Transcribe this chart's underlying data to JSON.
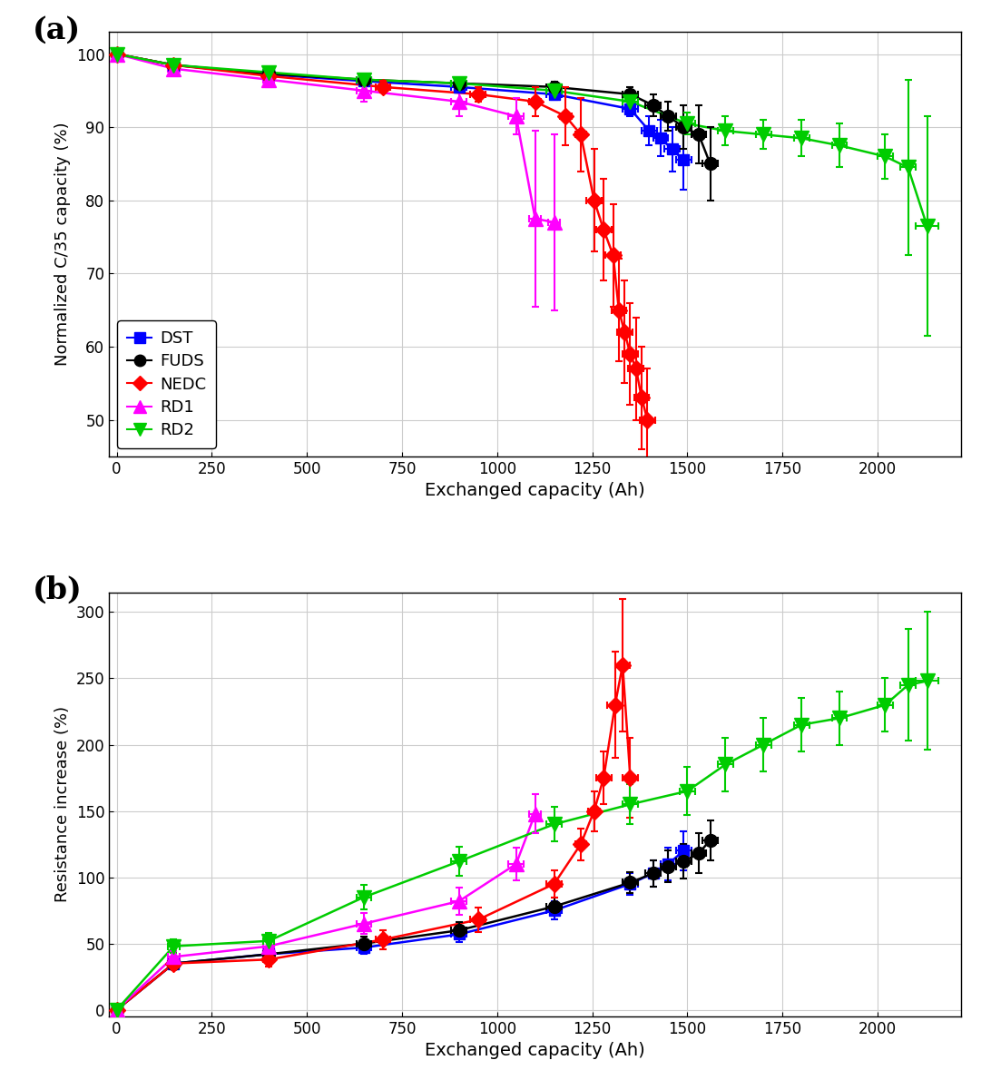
{
  "panel_a": {
    "title": "(a)",
    "ylabel": "Normalized C/35 capacity (%)",
    "xlabel": "Exchanged capacity (Ah)",
    "ylim": [
      45,
      103
    ],
    "xlim": [
      -20,
      2220
    ],
    "yticks": [
      50,
      60,
      70,
      80,
      90,
      100
    ],
    "xticks": [
      0,
      250,
      500,
      750,
      1000,
      1250,
      1500,
      1750,
      2000
    ],
    "series": {
      "DST": {
        "color": "#0000FF",
        "marker": "s",
        "x": [
          0,
          150,
          400,
          650,
          900,
          1150,
          1350,
          1400,
          1430,
          1460,
          1490
        ],
        "y": [
          100,
          98.5,
          97.2,
          96.3,
          95.5,
          94.5,
          92.5,
          89.5,
          88.5,
          87.0,
          85.5
        ],
        "xerr": [
          0,
          15,
          15,
          20,
          20,
          20,
          20,
          20,
          20,
          20,
          20
        ],
        "yerr": [
          0,
          0.3,
          0.5,
          0.5,
          0.7,
          0.8,
          1.0,
          2.0,
          2.5,
          3.0,
          4.0
        ]
      },
      "FUDS": {
        "color": "#000000",
        "marker": "o",
        "x": [
          0,
          150,
          400,
          650,
          900,
          1150,
          1350,
          1410,
          1450,
          1490,
          1530,
          1560
        ],
        "y": [
          100,
          98.5,
          97.3,
          96.5,
          96.0,
          95.5,
          94.5,
          93.0,
          91.5,
          90.0,
          89.0,
          85.0
        ],
        "xerr": [
          0,
          15,
          15,
          20,
          20,
          20,
          20,
          20,
          20,
          20,
          20,
          20
        ],
        "yerr": [
          0,
          0.3,
          0.5,
          0.5,
          0.5,
          0.7,
          1.0,
          1.5,
          2.0,
          3.0,
          4.0,
          5.0
        ]
      },
      "NEDC": {
        "color": "#FF0000",
        "marker": "D",
        "x": [
          0,
          150,
          400,
          700,
          950,
          1100,
          1180,
          1220,
          1255,
          1280,
          1305,
          1320,
          1335,
          1350,
          1365,
          1380,
          1395
        ],
        "y": [
          100,
          98.5,
          97.0,
          95.5,
          94.5,
          93.5,
          91.5,
          89.0,
          80.0,
          76.0,
          72.5,
          65.0,
          62.0,
          59.0,
          57.0,
          53.0,
          50.0
        ],
        "xerr": [
          0,
          15,
          15,
          20,
          20,
          15,
          15,
          15,
          20,
          20,
          20,
          20,
          20,
          20,
          20,
          20,
          20
        ],
        "yerr": [
          0,
          0.3,
          0.5,
          0.8,
          1.0,
          2.0,
          4.0,
          5.0,
          7.0,
          7.0,
          7.0,
          7.0,
          7.0,
          7.0,
          7.0,
          7.0,
          7.0
        ]
      },
      "RD1": {
        "color": "#FF00FF",
        "marker": "^",
        "x": [
          0,
          150,
          400,
          650,
          900,
          1050,
          1100,
          1150
        ],
        "y": [
          100,
          98.0,
          96.5,
          95.0,
          93.5,
          91.5,
          77.5,
          77.0
        ],
        "xerr": [
          0,
          15,
          15,
          20,
          20,
          20,
          15,
          15
        ],
        "yerr": [
          0,
          0.5,
          1.0,
          1.5,
          2.0,
          2.5,
          12.0,
          12.0
        ]
      },
      "RD2": {
        "color": "#00CC00",
        "marker": "v",
        "x": [
          0,
          150,
          400,
          650,
          900,
          1150,
          1350,
          1500,
          1600,
          1700,
          1800,
          1900,
          2020,
          2080,
          2130
        ],
        "y": [
          100,
          98.5,
          97.5,
          96.5,
          96.0,
          95.0,
          93.5,
          90.5,
          89.5,
          89.0,
          88.5,
          87.5,
          86.0,
          84.5,
          76.5
        ],
        "xerr": [
          0,
          15,
          15,
          20,
          20,
          20,
          20,
          20,
          20,
          20,
          20,
          20,
          20,
          20,
          30
        ],
        "yerr": [
          0,
          0.3,
          0.5,
          0.5,
          0.5,
          0.8,
          1.0,
          1.5,
          2.0,
          2.0,
          2.5,
          3.0,
          3.0,
          12.0,
          15.0
        ]
      }
    }
  },
  "panel_b": {
    "title": "(b)",
    "ylabel": "Resistance increase (%)",
    "xlabel": "Exchanged capacity (Ah)",
    "ylim": [
      -5,
      315
    ],
    "xlim": [
      -20,
      2220
    ],
    "yticks": [
      0,
      50,
      100,
      150,
      200,
      250,
      300
    ],
    "xticks": [
      0,
      250,
      500,
      750,
      1000,
      1250,
      1500,
      1750,
      2000
    ],
    "series": {
      "DST": {
        "color": "#0000FF",
        "marker": "s",
        "x": [
          0,
          150,
          400,
          650,
          900,
          1150,
          1350,
          1410,
          1450,
          1490
        ],
        "y": [
          0,
          35,
          42,
          47,
          57,
          75,
          95,
          103,
          110,
          120
        ],
        "xerr": [
          0,
          15,
          15,
          20,
          20,
          20,
          20,
          20,
          20,
          20
        ],
        "yerr": [
          0,
          4,
          5,
          5,
          6,
          7,
          8,
          10,
          12,
          15
        ]
      },
      "FUDS": {
        "color": "#000000",
        "marker": "o",
        "x": [
          0,
          150,
          400,
          650,
          900,
          1150,
          1350,
          1410,
          1450,
          1490,
          1530,
          1560
        ],
        "y": [
          0,
          35,
          42,
          50,
          60,
          78,
          96,
          103,
          108,
          112,
          118,
          128
        ],
        "xerr": [
          0,
          15,
          15,
          20,
          20,
          20,
          20,
          20,
          20,
          20,
          20,
          20
        ],
        "yerr": [
          0,
          4,
          5,
          5,
          6,
          7,
          8,
          10,
          12,
          13,
          15,
          15
        ]
      },
      "NEDC": {
        "color": "#FF0000",
        "marker": "D",
        "x": [
          0,
          150,
          400,
          700,
          950,
          1150,
          1220,
          1255,
          1280,
          1310,
          1330,
          1350
        ],
        "y": [
          0,
          35,
          38,
          53,
          68,
          95,
          125,
          150,
          175,
          230,
          260,
          175
        ],
        "xerr": [
          0,
          15,
          15,
          20,
          20,
          20,
          15,
          15,
          20,
          20,
          20,
          20
        ],
        "yerr": [
          0,
          4,
          5,
          7,
          9,
          10,
          12,
          15,
          20,
          40,
          50,
          30
        ]
      },
      "RD1": {
        "color": "#FF00FF",
        "marker": "^",
        "x": [
          0,
          150,
          400,
          650,
          900,
          1050,
          1100
        ],
        "y": [
          0,
          40,
          48,
          65,
          82,
          110,
          148
        ],
        "xerr": [
          0,
          15,
          15,
          20,
          20,
          20,
          15
        ],
        "yerr": [
          0,
          4,
          5,
          8,
          10,
          12,
          15
        ]
      },
      "RD2": {
        "color": "#00CC00",
        "marker": "v",
        "x": [
          0,
          150,
          400,
          650,
          900,
          1150,
          1350,
          1500,
          1600,
          1700,
          1800,
          1900,
          2020,
          2080,
          2130
        ],
        "y": [
          0,
          48,
          52,
          85,
          112,
          140,
          155,
          165,
          185,
          200,
          215,
          220,
          230,
          245,
          248
        ],
        "xerr": [
          0,
          15,
          15,
          20,
          20,
          20,
          20,
          20,
          20,
          20,
          20,
          20,
          20,
          20,
          30
        ],
        "yerr": [
          0,
          5,
          6,
          9,
          11,
          13,
          15,
          18,
          20,
          20,
          20,
          20,
          20,
          42,
          52
        ]
      }
    }
  },
  "legend_names": [
    "DST",
    "FUDS",
    "NEDC",
    "RD1",
    "RD2"
  ],
  "legend_colors": [
    "#0000FF",
    "#000000",
    "#FF0000",
    "#FF00FF",
    "#00CC00"
  ],
  "legend_markers": [
    "s",
    "o",
    "D",
    "^",
    "v"
  ]
}
